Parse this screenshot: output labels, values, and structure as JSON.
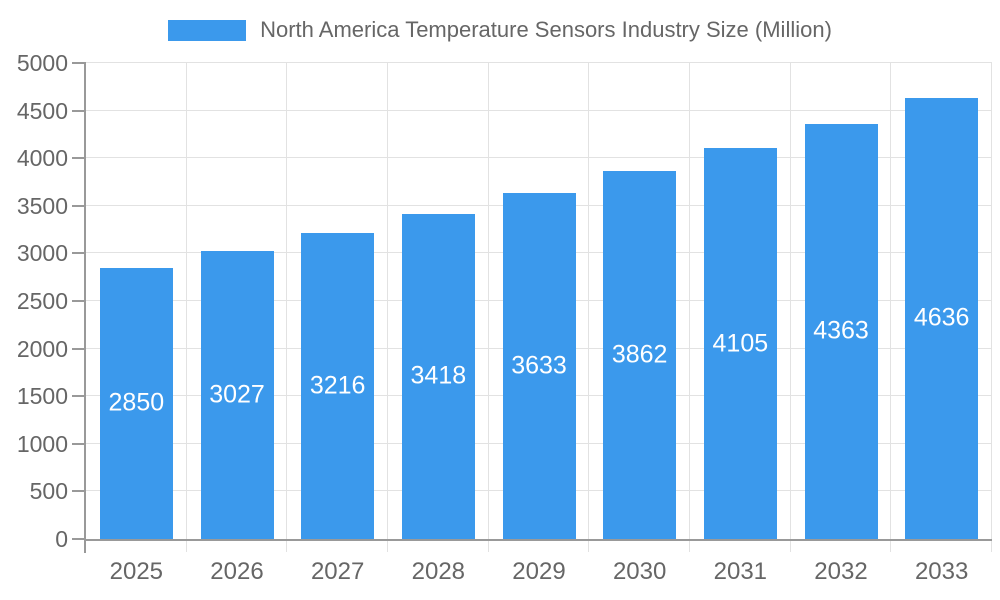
{
  "legend": {
    "label": "North America Temperature Sensors Industry Size (Million)"
  },
  "chart_data": {
    "type": "bar",
    "title": "",
    "series_name": "North America Temperature Sensors Industry Size (Million)",
    "categories": [
      "2025",
      "2026",
      "2027",
      "2028",
      "2029",
      "2030",
      "2031",
      "2032",
      "2033"
    ],
    "values": [
      2850,
      3027,
      3216,
      3418,
      3633,
      3862,
      4105,
      4363,
      4636
    ],
    "bar_value_labels": [
      "2850",
      "3027",
      "3216",
      "3418",
      "3633",
      "3862",
      "4105",
      "4363",
      "4636"
    ],
    "xlabel": "",
    "ylabel": "",
    "ylim": [
      0,
      5000
    ],
    "ytick_step": 500,
    "yticks": [
      0,
      500,
      1000,
      1500,
      2000,
      2500,
      3000,
      3500,
      4000,
      4500,
      5000
    ],
    "grid": true,
    "legend_position": "top"
  },
  "colors": {
    "bar": "#3b99ec",
    "bar_value_label": "#ffffff",
    "axis_text": "#666666",
    "legend_text": "#666666",
    "axis_line": "#999999",
    "gridline": "#e2e2e2",
    "background": "#ffffff"
  }
}
